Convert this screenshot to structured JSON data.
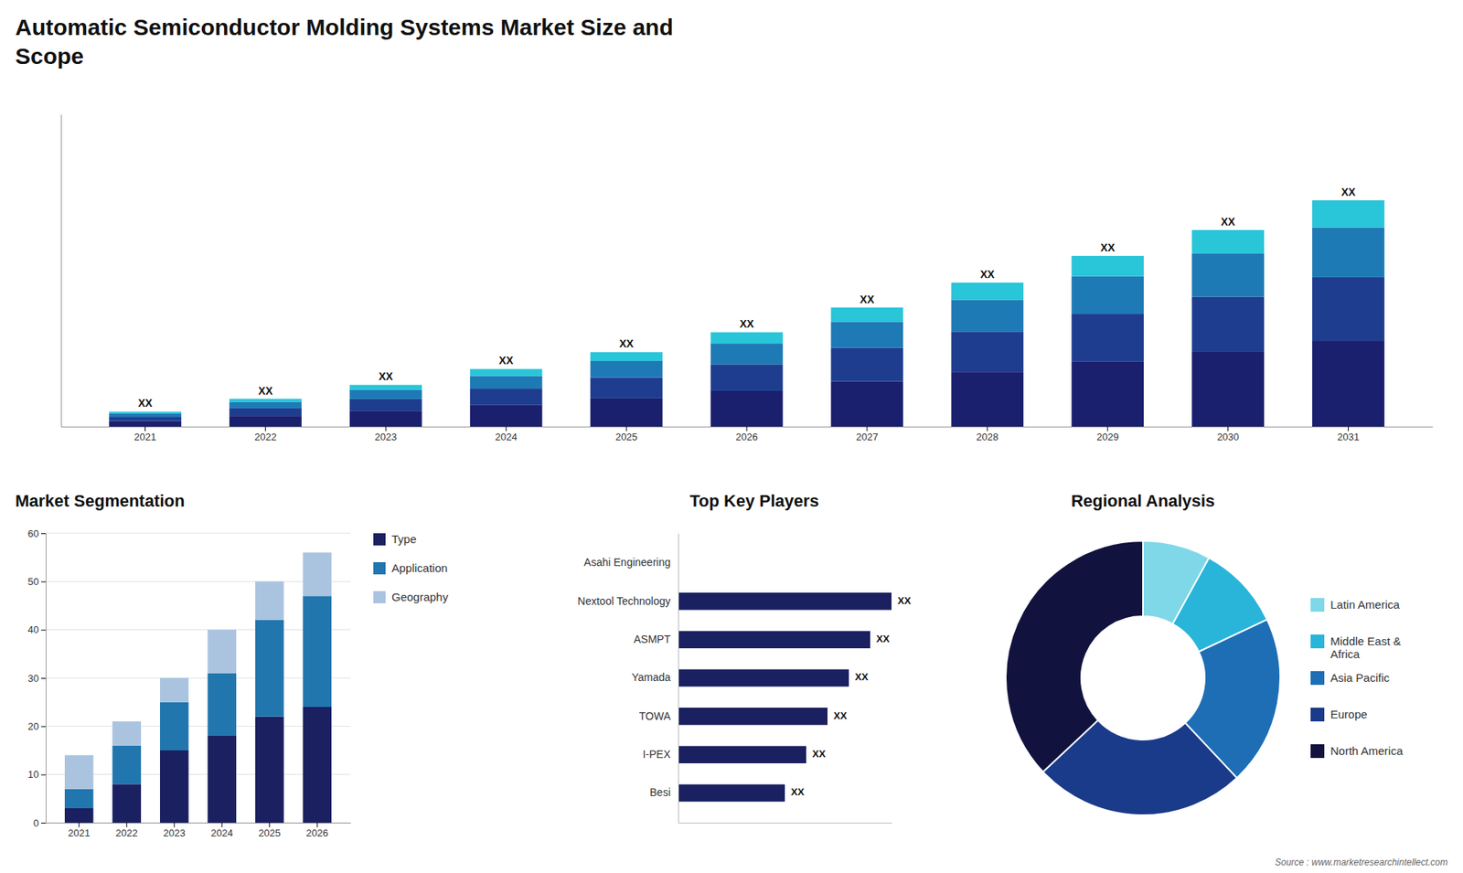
{
  "chart_data": [
    {
      "type": "bar",
      "title": "Automatic Semiconductor Molding Systems Market Size and\nScope",
      "stacked": true,
      "categories": [
        "2021",
        "2022",
        "2023",
        "2024",
        "2025",
        "2026",
        "2027",
        "2028",
        "2029",
        "2030",
        "2031"
      ],
      "series": [
        {
          "color": "#1a1f6e",
          "values": [
            0.57,
            1.064,
            1.596,
            2.204,
            2.85,
            3.61,
            4.56,
            5.51,
            6.536,
            7.524,
            8.664
          ]
        },
        {
          "color": "#1e3d8f",
          "values": [
            0.42,
            0.784,
            1.176,
            1.624,
            2.1,
            2.66,
            3.36,
            4.06,
            4.816,
            5.544,
            6.384
          ]
        },
        {
          "color": "#1e7ab5",
          "values": [
            0.33,
            0.616,
            0.924,
            1.276,
            1.65,
            2.09,
            2.64,
            3.19,
            3.784,
            4.356,
            5.016
          ]
        },
        {
          "color": "#29c5d9",
          "values": [
            0.18,
            0.336,
            0.504,
            0.696,
            0.9,
            1.14,
            1.44,
            1.74,
            2.064,
            2.376,
            2.736
          ],
          "value_labels": [
            "XX",
            "XX",
            "XX",
            "XX",
            "XX",
            "XX",
            "XX",
            "XX",
            "XX",
            "XX",
            "XX"
          ]
        }
      ],
      "ylim": [
        0,
        31.464
      ],
      "tick_labels": "x",
      "data_labels": true,
      "annotations": [
        "Source : www.marketresearchintellect.com"
      ]
    },
    {
      "type": "bar",
      "title": "Market Segmentation",
      "stacked": true,
      "categories": [
        "2021",
        "2022",
        "2023",
        "2024",
        "2025",
        "2026"
      ],
      "series": [
        {
          "name": "Type",
          "color": "#1a2060",
          "values": [
            3,
            8,
            15,
            18,
            22,
            24
          ]
        },
        {
          "name": "Application",
          "color": "#2176ae",
          "values": [
            4,
            8,
            10,
            13,
            20,
            23
          ]
        },
        {
          "name": "Geography",
          "color": "#aac4e0",
          "values": [
            7,
            5,
            5,
            9,
            8,
            9
          ]
        }
      ],
      "ylim": [
        0,
        60
      ],
      "yticks": [
        0,
        10,
        20,
        30,
        40,
        50,
        60
      ],
      "grid": true,
      "legend": "right"
    },
    {
      "type": "bar",
      "orientation": "horizontal",
      "title": "Top Key Players",
      "categories": [
        "Asahi Engineering",
        "Nextool Technology",
        "ASMPT",
        "Yamada",
        "TOWA",
        "I-PEX",
        "Besi"
      ],
      "values": [
        0,
        10,
        9,
        8,
        7,
        6,
        5
      ],
      "value_labels": [
        null,
        "XX",
        "XX",
        "XX",
        "XX",
        "XX",
        "XX"
      ],
      "color": "#1a2060",
      "xlim": [
        0,
        10
      ],
      "tick_labels": "y",
      "data_labels": true
    },
    {
      "type": "donut",
      "title": "Regional Analysis",
      "categories": [
        "Latin America",
        "Middle East &\nAfrica",
        "Asia Pacific",
        "Europe",
        "North America"
      ],
      "values": [
        8,
        10,
        20,
        25,
        37
      ],
      "colors": [
        "#7fd8e8",
        "#29b5d9",
        "#1e6eb5",
        "#1a3a8a",
        "#12123e"
      ],
      "legend": "right"
    }
  ]
}
